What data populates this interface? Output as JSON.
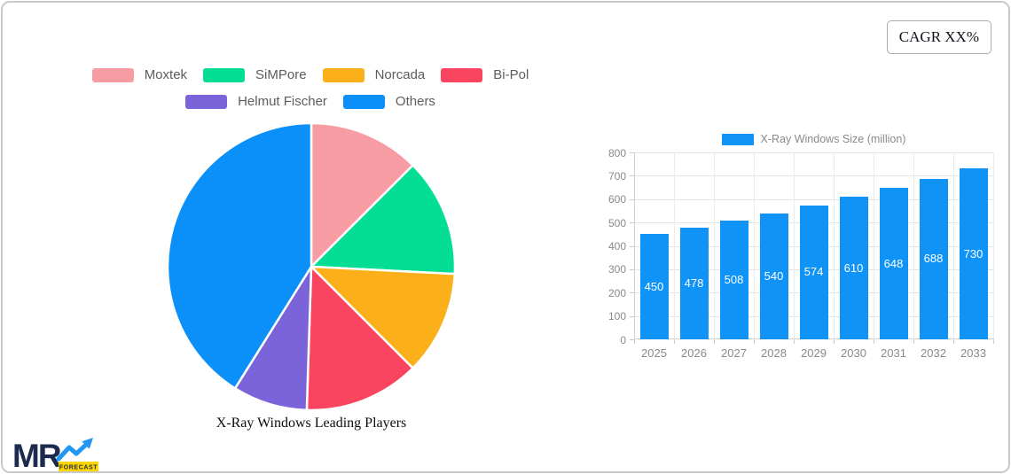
{
  "header": {
    "cagr_label": "CAGR XX%"
  },
  "logo": {
    "brand": "MR",
    "sub_brand": "FORECAST",
    "brand_color": "#1B2A4D",
    "accent_color": "#2196F3",
    "badge_color": "#FFD500"
  },
  "pie": {
    "title": "X-Ray Windows Leading Players",
    "legend_row_break": 4
  },
  "bar": {
    "series_name": "X-Ray Windows Size (million)"
  },
  "chart_data": [
    {
      "type": "pie",
      "title": "X-Ray Windows Leading Players",
      "labels": [
        "Moxtek",
        "SiMPore",
        "Norcada",
        "Bi-Pol",
        "Helmut Fischer",
        "Others"
      ],
      "values_percent": [
        12.5,
        13.3,
        11.7,
        13.0,
        8.4,
        41.1
      ],
      "colors": [
        "#F89CA4",
        "#04DE95",
        "#FBB019",
        "#FB4560",
        "#7B64D9",
        "#0A90F8"
      ],
      "start_angle": "12-oclock",
      "direction": "clockwise",
      "slice_border_color": "#FFFFFF",
      "legend_position": "top"
    },
    {
      "type": "bar",
      "categories": [
        "2025",
        "2026",
        "2027",
        "2028",
        "2029",
        "2030",
        "2031",
        "2032",
        "2033"
      ],
      "series": [
        {
          "name": "X-Ray Windows Size (million)",
          "values": [
            450,
            478,
            508,
            540,
            574,
            610,
            648,
            688,
            730
          ]
        }
      ],
      "bar_color": "#0F93F7",
      "ylim": [
        0,
        800
      ],
      "ytick_step": 100,
      "grid": true,
      "value_label_style": "white-inside-center",
      "legend_position": "top"
    }
  ]
}
